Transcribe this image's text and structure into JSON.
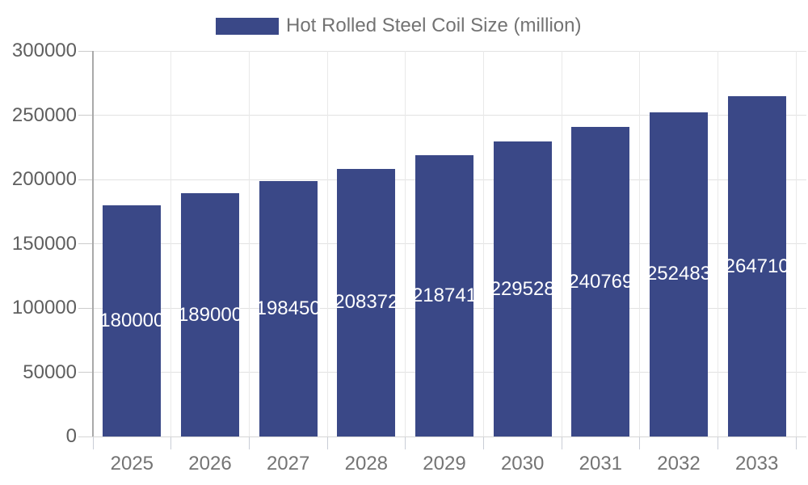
{
  "chart_data": {
    "type": "bar",
    "title": "",
    "xlabel": "",
    "ylabel": "",
    "categories": [
      "2025",
      "2026",
      "2027",
      "2028",
      "2029",
      "2030",
      "2031",
      "2032",
      "2033"
    ],
    "series": [
      {
        "name": "Hot Rolled Steel Coil Size (million)",
        "values": [
          180000,
          189000,
          198450,
          208372,
          218741,
          229528,
          240769,
          252483,
          264710
        ],
        "color": "#3a4887"
      }
    ],
    "bar_labels": [
      "180000",
      "189000",
      "198450",
      "208372",
      "218741",
      "229528",
      "240769",
      "252483",
      "264710"
    ],
    "bar_label_color": "#ffffff",
    "ylim": [
      0,
      300000
    ],
    "yticks": [
      0,
      50000,
      100000,
      150000,
      200000,
      250000,
      300000
    ],
    "ytick_labels": [
      "0",
      "50000",
      "100000",
      "150000",
      "200000",
      "250000",
      "300000"
    ],
    "grid": true,
    "legend_position": "top-center"
  },
  "legend": {
    "items": [
      {
        "label": "Hot Rolled Steel Coil Size (million)",
        "color": "#3a4887"
      }
    ]
  }
}
